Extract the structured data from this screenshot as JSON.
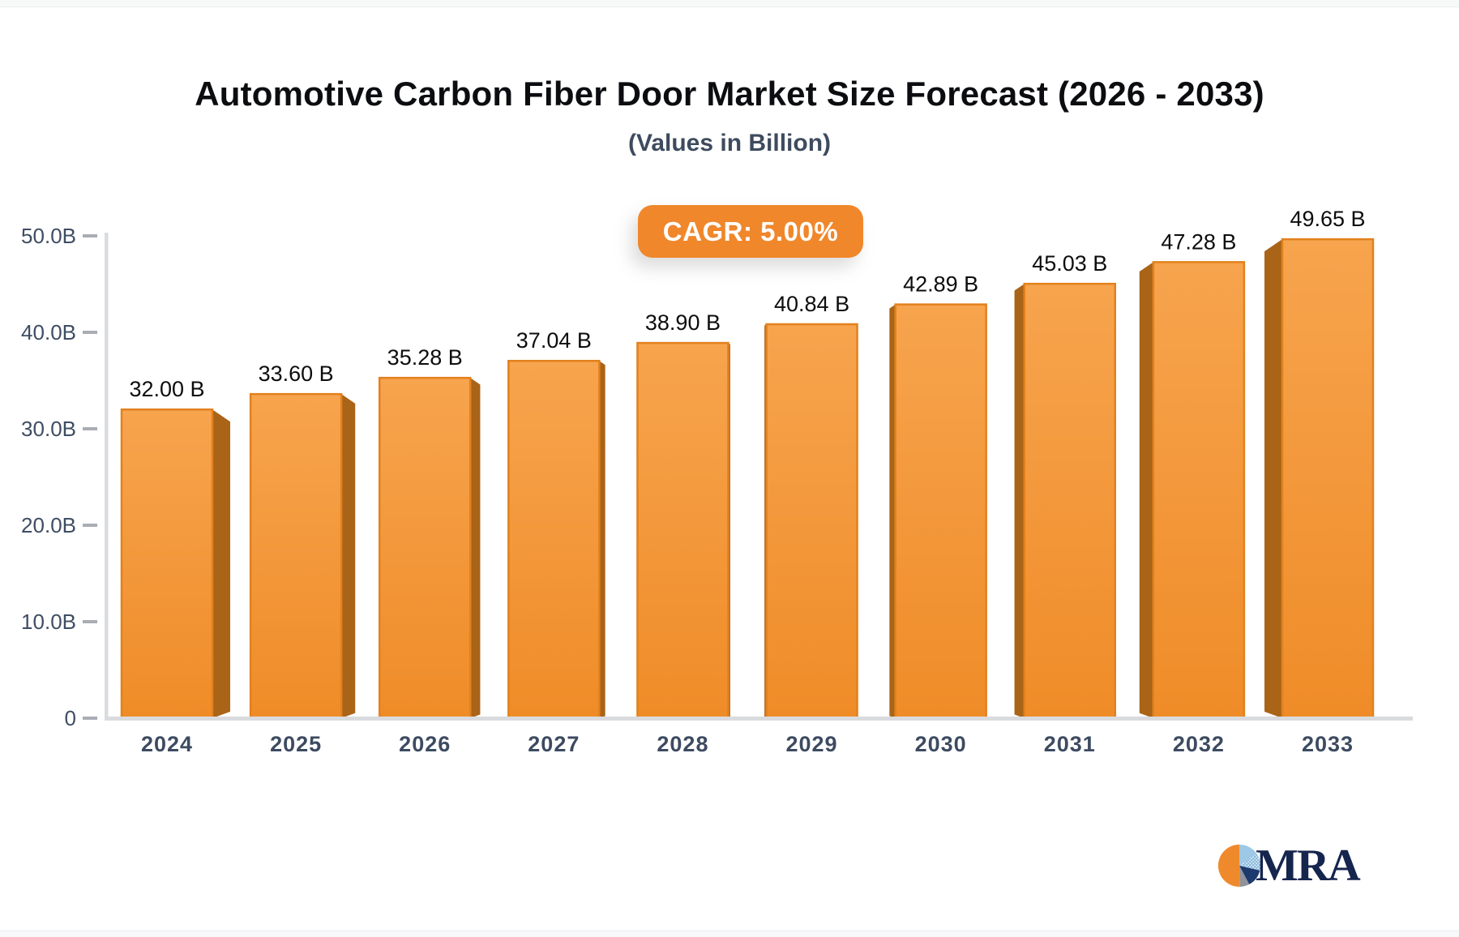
{
  "header": {
    "title": "Automotive Carbon Fiber Door Market Size Forecast (2026 - 2033)",
    "subtitle": "(Values in Billion)"
  },
  "badge": {
    "label": "CAGR: 5.00%"
  },
  "logo": {
    "text": "MRA"
  },
  "colors": {
    "bar_front_top": "#f7a44e",
    "bar_front_bottom": "#ef8c28",
    "bar_side": "#a96418",
    "bar_border": "#e2811e",
    "axis": "#d9dbde",
    "tick": "#a9adb4",
    "tick_label": "#3f4d63",
    "year_label": "#3d4b61",
    "value_label": "#0d0d0e",
    "badge_bg": "#f0872b",
    "title": "#0c0d10",
    "subtitle": "#3e4b5e",
    "logo_navy": "#16254e"
  },
  "chart_data": {
    "type": "bar",
    "title": "Automotive Carbon Fiber Door Market Size Forecast (2026 - 2033)",
    "subtitle": "(Values in Billion)",
    "annotation": "CAGR: 5.00%",
    "categories": [
      "2024",
      "2025",
      "2026",
      "2027",
      "2028",
      "2029",
      "2030",
      "2031",
      "2032",
      "2033"
    ],
    "values": [
      32.0,
      33.6,
      35.28,
      37.04,
      38.9,
      40.84,
      42.89,
      45.03,
      47.28,
      49.65
    ],
    "value_labels": [
      "32.00 B",
      "33.60 B",
      "35.28 B",
      "37.04 B",
      "38.90 B",
      "40.84 B",
      "42.89 B",
      "45.03 B",
      "47.28 B",
      "49.65 B"
    ],
    "xlabel": "",
    "ylabel": "",
    "ylim": [
      0,
      50
    ],
    "yticks": [
      {
        "v": 0,
        "label": "0"
      },
      {
        "v": 10,
        "label": "10.0B"
      },
      {
        "v": 20,
        "label": "20.0B"
      },
      {
        "v": 30,
        "label": "30.0B"
      },
      {
        "v": 40,
        "label": "40.0B"
      },
      {
        "v": 50,
        "label": "50.0B"
      }
    ],
    "grid": false,
    "legend": false,
    "style": "3d-perspective-bars"
  }
}
